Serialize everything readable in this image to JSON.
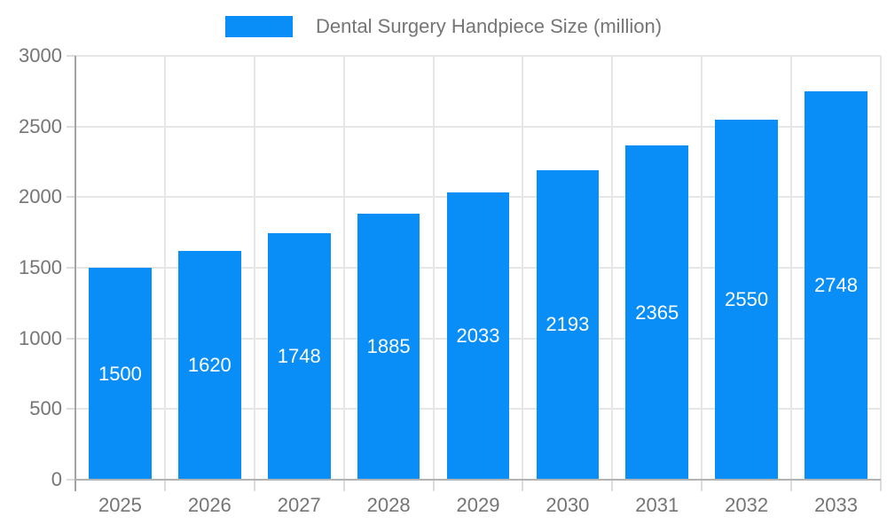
{
  "legend": {
    "label": "Dental Surgery Handpiece Size (million)"
  },
  "chart_data": {
    "type": "bar",
    "title": "Dental Surgery Handpiece Size (million)",
    "categories": [
      "2025",
      "2026",
      "2027",
      "2028",
      "2029",
      "2030",
      "2031",
      "2032",
      "2033"
    ],
    "values": [
      1500,
      1620,
      1748,
      1885,
      2033,
      2193,
      2365,
      2550,
      2748
    ],
    "series_name": "Dental Surgery Handpiece Size (million)",
    "xlabel": "",
    "ylabel": "",
    "ylim": [
      0,
      3000
    ],
    "ytick_step": 500,
    "yticks": [
      "0",
      "500",
      "1000",
      "1500",
      "2000",
      "2500",
      "3000"
    ],
    "grid": true,
    "legend_position": "top-center",
    "value_labels": "inside-center"
  },
  "colors": {
    "bar": "#098ef8",
    "bar_label": "#ffffff",
    "axis_text": "#757575",
    "grid": "#e6e6e6",
    "tick": "#dcdcdc",
    "axis_line": "#a8a8a8",
    "background": "#ffffff"
  }
}
